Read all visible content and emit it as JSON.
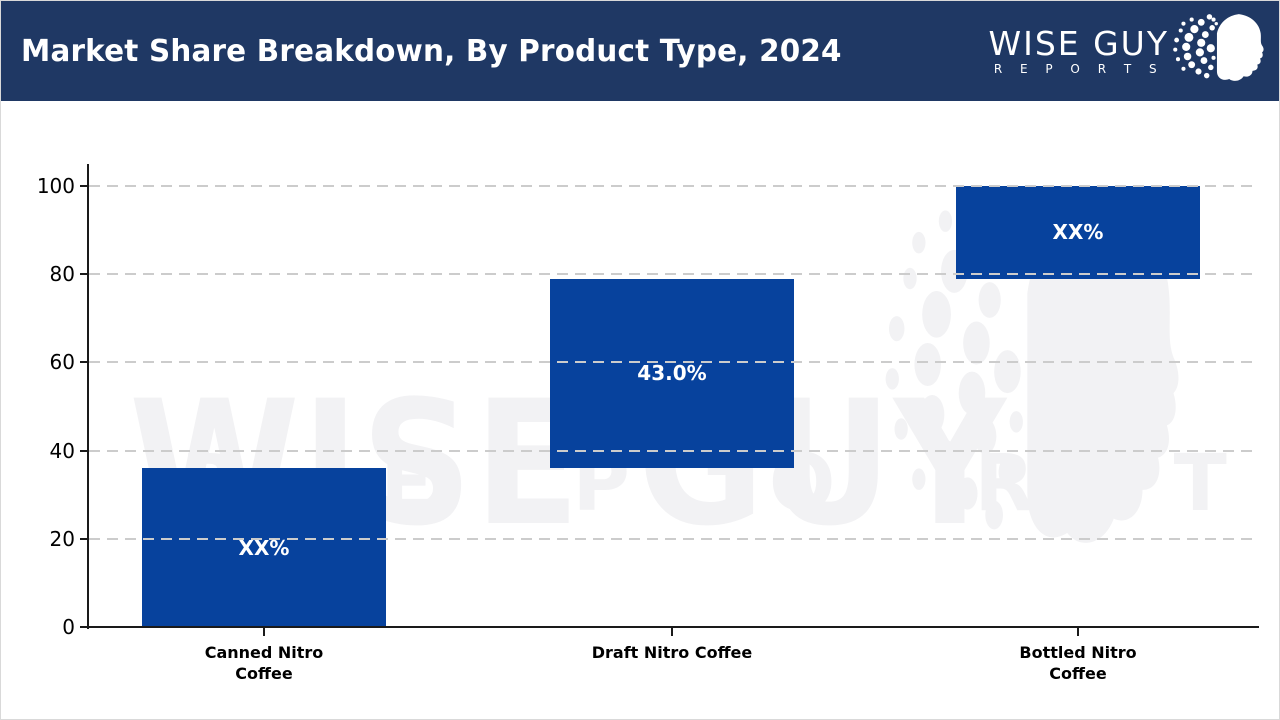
{
  "header": {
    "title": "Market Share Breakdown, By Product Type, 2024",
    "logo": {
      "line1": "WISE GUY",
      "line2": "R E P O R T S"
    }
  },
  "watermark": {
    "line1": "WISE GUY",
    "line2": "R E P O R T S"
  },
  "colors": {
    "header_bg": "#1f3864",
    "bar": "#07429d",
    "gridline": "#cccccc",
    "axis": "#1a1a1a",
    "tick_label": "#000000",
    "value_label": "#ffffff",
    "watermark": "#f2f2f4",
    "card_border": "#d9d9d9"
  },
  "chart_data": {
    "type": "bar",
    "variant": "waterfall",
    "title": "Market Share Breakdown, By Product Type, 2024",
    "categories": [
      [
        "Canned Nitro",
        "Coffee"
      ],
      [
        "Draft Nitro Coffee"
      ],
      [
        "Bottled Nitro",
        "Coffee"
      ]
    ],
    "series": [
      {
        "name": "Market share (%)",
        "segments": [
          {
            "category": "Canned Nitro Coffee",
            "start": 0,
            "end": 36,
            "value": 36,
            "label": "XX%"
          },
          {
            "category": "Draft Nitro Coffee",
            "start": 36,
            "end": 79,
            "value": 43,
            "label": "43.0%"
          },
          {
            "category": "Bottled Nitro Coffee",
            "start": 79,
            "end": 100,
            "value": 21,
            "label": "XX%"
          }
        ]
      }
    ],
    "xlabel": "",
    "ylabel": "",
    "ylim": [
      0,
      100
    ],
    "yticks": [
      0,
      20,
      40,
      60,
      80,
      100
    ],
    "grid": {
      "horizontal": true,
      "style": "dashed",
      "above_bars": true
    },
    "legend": null
  }
}
